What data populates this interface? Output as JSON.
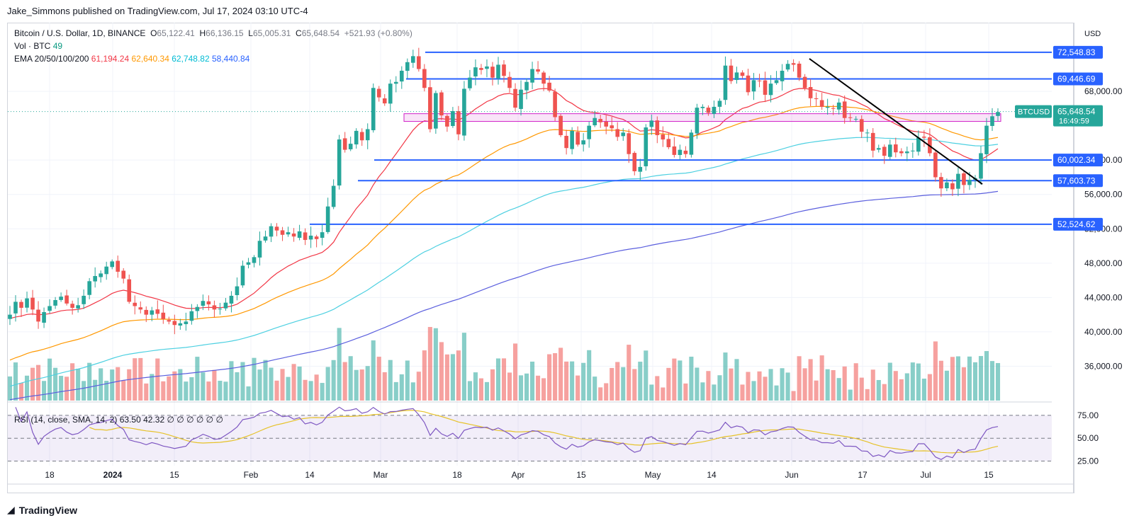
{
  "header": {
    "publisher": "Jake_Simmons published on TradingView.com, Jul 17, 2024 03:10 UTC-4"
  },
  "legend": {
    "symbol": "Bitcoin / U.S. Dollar, 1D, BINANCE",
    "o_label": "O",
    "o": "65,122.41",
    "h_label": "H",
    "h": "66,136.15",
    "l_label": "L",
    "l": "65,005.31",
    "c_label": "C",
    "c": "65,648.54",
    "change": "+521.93 (+0.80%)",
    "vol_label": "Vol · BTC",
    "vol": "49",
    "ema_label": "EMA 20/50/100/200",
    "ema20": "61,194.24",
    "ema50": "62,640.34",
    "ema100": "62,748.82",
    "ema200": "58,440.84"
  },
  "rsi_legend": {
    "label": "RSI (14, close, SMA, 14, 2)",
    "rsi": "63.50",
    "sma": "42.32",
    "empties": [
      "∅",
      "∅",
      "∅",
      "∅",
      "∅",
      "∅"
    ]
  },
  "axis": {
    "currency": "USD"
  },
  "footer": {
    "brand": "TradingView"
  },
  "colors": {
    "up": "#26a69a",
    "down": "#ef5350",
    "ema20": "#f23645",
    "ema50": "#ff9800",
    "ema100": "#4dd0e1",
    "ema200": "#5b5fde",
    "level": "#2962ff",
    "zone": "#d020c8",
    "rsi": "#7e57c2",
    "rsi_sma": "#e6c229"
  },
  "chart_data": {
    "type": "candlestick",
    "ylim": [
      32000,
      76000
    ],
    "y_ticks": [
      36000,
      40000,
      44000,
      48000,
      52000,
      56000,
      60000,
      68000
    ],
    "y_tick_labels": [
      "36,000.00",
      "40,000.00",
      "44,000.00",
      "48,000.00",
      "52,000.00",
      "56,000.00",
      "60,000.00",
      "68,000.00"
    ],
    "x_ticks": [
      "18",
      "2024",
      "15",
      "Feb",
      "14",
      "Mar",
      "18",
      "Apr",
      "15",
      "May",
      "14",
      "Jun",
      "17",
      "Jul",
      "15"
    ],
    "price_levels": [
      {
        "value": 72548.83,
        "label": "72,548.83"
      },
      {
        "value": 69446.69,
        "label": "69,446.69"
      },
      {
        "value": 60002.34,
        "label": "60,002.34"
      },
      {
        "value": 57603.73,
        "label": "57,603.73"
      },
      {
        "value": 52524.62,
        "label": "52,524.62"
      }
    ],
    "current_price": {
      "symbol": "BTCUSD",
      "value": 65648.54,
      "label": "65,648.54",
      "countdown": "16:49:59"
    },
    "resistance_zone": [
      64500,
      65400
    ],
    "trendline": {
      "from": [
        "2024-06-06",
        71800
      ],
      "to": [
        "2024-07-13",
        57200
      ]
    },
    "closes": [
      [
        42000,
        43500,
        42800,
        43900,
        42600,
        41200,
        42300,
        43000,
        43700,
        44100,
        43300,
        42800,
        43100,
        44200,
        45900,
        46500,
        46800,
        47600,
        48200,
        47000,
        46200,
        43500,
        43000,
        42600,
        42000,
        42500,
        42100,
        41500,
        41200,
        40800,
        41000,
        41200,
        42400,
        42900,
        43600,
        43200,
        42600,
        42700,
        43400,
        44200,
        45300,
        47700,
        48100,
        48700,
        50600,
        51100,
        52300,
        51800,
        51300,
        51600,
        51100,
        51700,
        50700,
        51200,
        50800,
        51600,
        54600,
        57000,
        62400,
        61200,
        61900,
        63400,
        62300,
        63600,
        68400,
        67300,
        66600,
        68900,
        69100,
        70400,
        71400,
        72100,
        70600,
        68400,
        63600,
        67800,
        65200,
        63900,
        65700,
        63000,
        68300,
        69600,
        70800,
        70500,
        70900,
        69600,
        71100,
        69800,
        68400,
        66100,
        68200,
        69100,
        70600,
        70300,
        68900,
        68100,
        65000,
        62900,
        61400,
        63400,
        61800,
        62300,
        64000,
        64900,
        64400,
        63900,
        63700,
        62700,
        63200,
        60700,
        58700,
        59200,
        63800,
        64600,
        62900,
        62400,
        61500,
        60600,
        61200,
        60700,
        63200,
        66100,
        66200,
        65500,
        66200,
        66900,
        71000,
        69200,
        70200,
        69800,
        67900,
        69300,
        69200,
        67600,
        68900,
        69300,
        70400,
        71200,
        71100,
        69600,
        68400,
        67200,
        67100,
        66200,
        66200,
        66000,
        66700,
        64900,
        64900,
        64800,
        63300,
        63200,
        61100,
        61400,
        60500,
        61800,
        60900,
        60800,
        61000,
        61100,
        62600,
        62600,
        60800,
        58000,
        56700,
        57400,
        56600,
        58400,
        57100,
        57700,
        57900,
        60800,
        64000,
        65100,
        65600
      ]
    ],
    "ema": {
      "periods": [
        20,
        50,
        100,
        200
      ],
      "last": [
        61194.24,
        62640.34,
        62748.82,
        58440.84
      ]
    },
    "rsi": {
      "ylim": [
        20,
        85
      ],
      "levels": [
        75,
        50,
        25
      ],
      "level_labels": [
        "75.00",
        "50.00",
        "25.00"
      ],
      "last": 63.5,
      "sma_last": 42.32
    }
  }
}
